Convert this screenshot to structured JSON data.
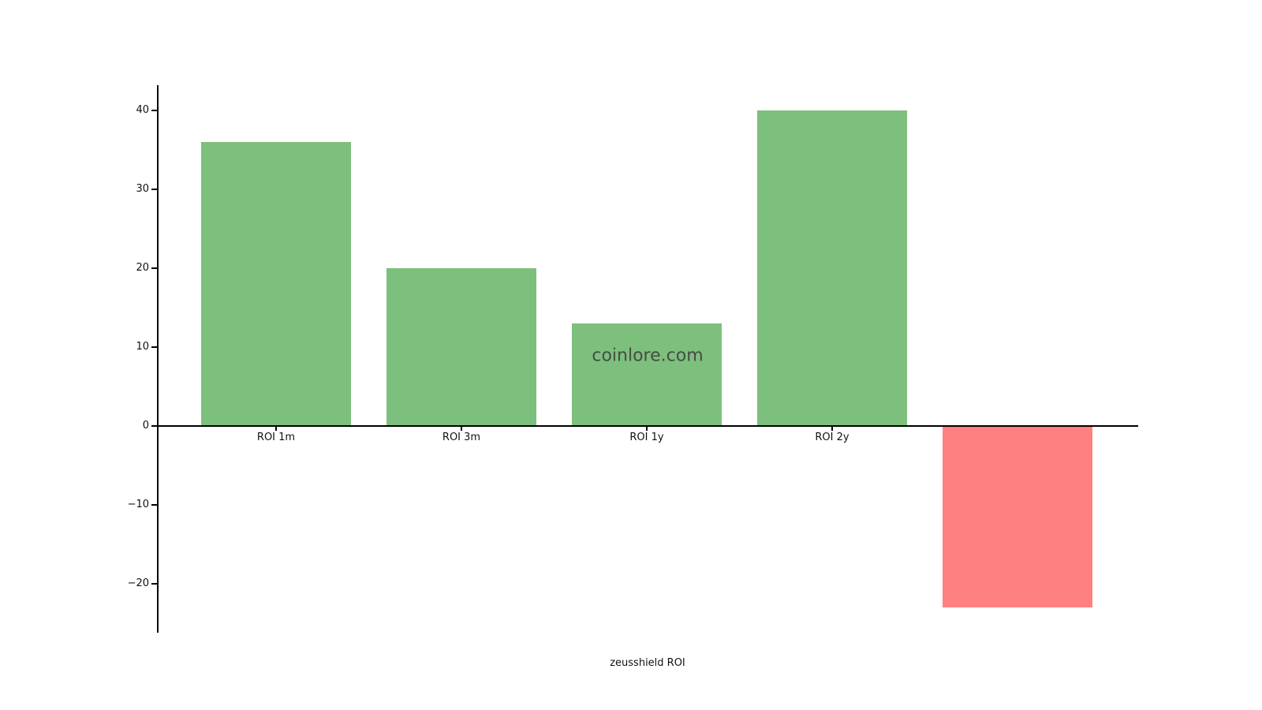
{
  "page": {
    "background": "#ffffff"
  },
  "watermark": {
    "text": "coinlore.com",
    "color": "#3a3a3a"
  },
  "chart_data": {
    "type": "bar",
    "title": "",
    "xlabel": "zeusshield ROI",
    "ylabel": "",
    "categories": [
      "ROI 1m",
      "ROI 3m",
      "ROI 1y",
      "ROI 2y",
      ""
    ],
    "values": [
      36,
      20,
      13,
      40,
      -23
    ],
    "yticks": [
      40,
      30,
      20,
      10,
      0,
      -10,
      -20
    ],
    "ytick_labels": [
      "40",
      "30",
      "20",
      "10",
      "0",
      "−10",
      "−20"
    ],
    "ylim": [
      -24.7,
      43.2
    ],
    "grid": false,
    "legend": null,
    "colors": {
      "positive": "#7dbf7d",
      "negative": "#ff8080",
      "axis": "#000000"
    }
  }
}
